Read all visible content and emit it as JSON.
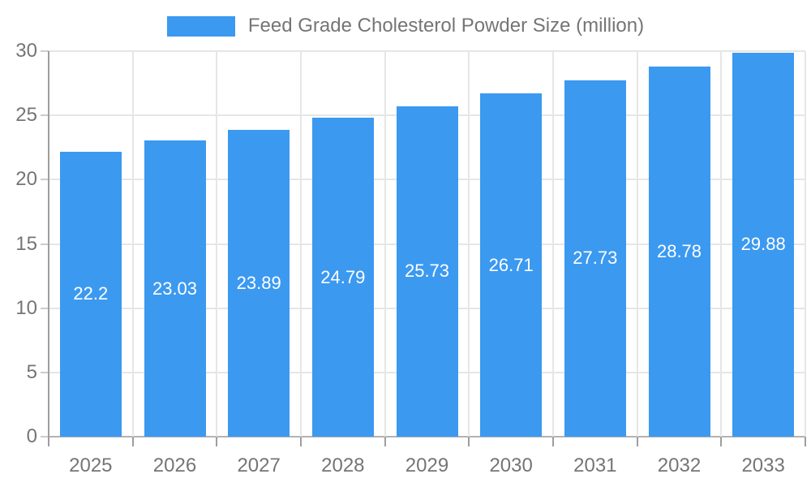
{
  "chart_data": {
    "type": "bar",
    "title": "Feed Grade Cholesterol Powder Size (million)",
    "categories": [
      "2025",
      "2026",
      "2027",
      "2028",
      "2029",
      "2030",
      "2031",
      "2032",
      "2033"
    ],
    "values": [
      22.2,
      23.03,
      23.89,
      24.79,
      25.73,
      26.71,
      27.73,
      28.78,
      29.88
    ],
    "value_labels": [
      "22.2",
      "23.03",
      "23.89",
      "24.79",
      "25.73",
      "26.71",
      "27.73",
      "28.78",
      "29.88"
    ],
    "xlabel": "",
    "ylabel": "",
    "ylim": [
      0,
      30
    ],
    "yticks": [
      0,
      5,
      10,
      15,
      20,
      25,
      30
    ],
    "grid": true,
    "legend_position": "top",
    "colors": {
      "bar": "#3B99F0",
      "bar_value_text": "#ffffff",
      "axis_text": "#757575",
      "gridline": "#e6e6e6",
      "axis_line": "#9e9e9e",
      "baseline": "#b3b3b3",
      "ytick_dash": "#cccccc",
      "background": "#ffffff"
    }
  }
}
